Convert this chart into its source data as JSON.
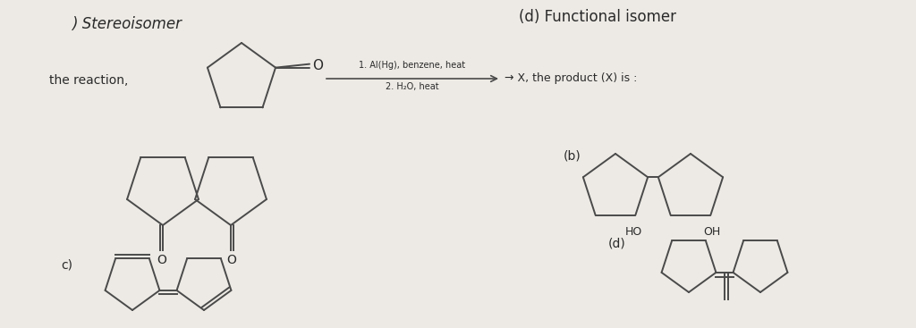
{
  "title_left": ") Stereoisomer",
  "title_right": "(d) Functional isomer",
  "reaction_label": "the reaction,",
  "arrow_text_top": "1. Al(Hg), benzene, heat",
  "arrow_text_bottom": "2. H₂O, heat",
  "arrow_end_text": "→ X, the product (X) is :",
  "label_b": "(b)",
  "label_c": "c)",
  "label_d": "(d)",
  "ho_text": "HO",
  "oh_text": "OH",
  "o_text": "O",
  "bg_color": "#edeae5",
  "line_color": "#4a4a4a",
  "text_color": "#2a2a2a",
  "fsize_title": 12,
  "fsize_label": 10,
  "fsize_arrow": 8,
  "fsize_chem": 9
}
